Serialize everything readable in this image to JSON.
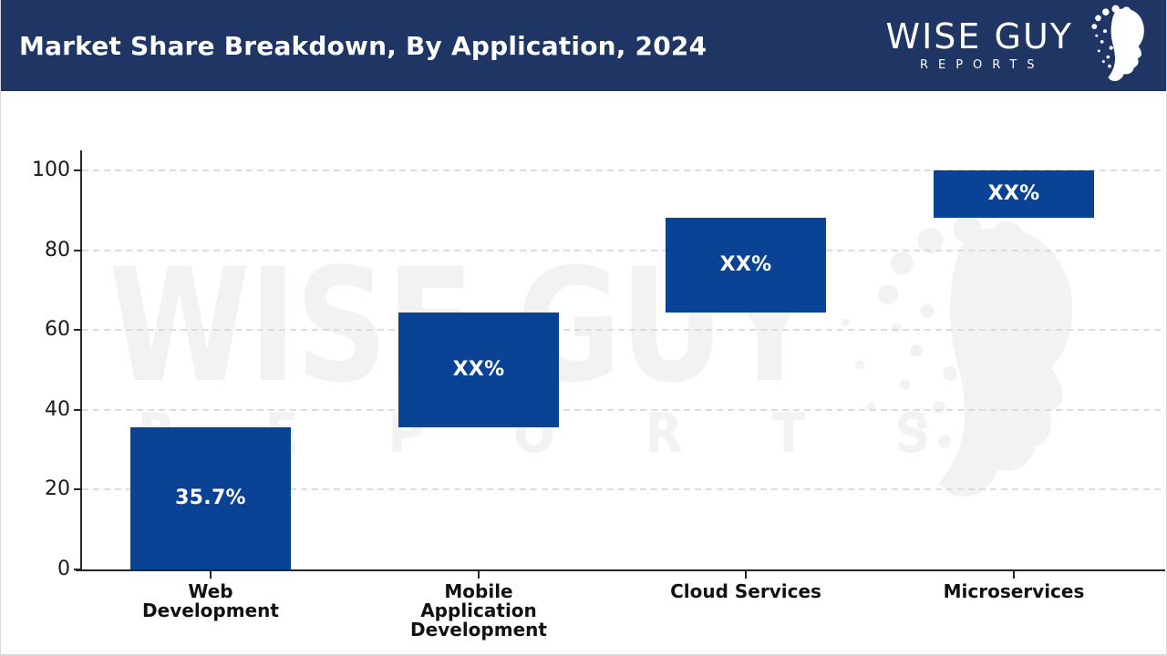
{
  "page": {
    "background": "#ffffff",
    "border_color": "#d9d9d9"
  },
  "header": {
    "background": "#1f3563",
    "title": "Market Share Breakdown, By Application, 2024",
    "title_color": "#ffffff",
    "logo": {
      "line1": "WISE GUY",
      "line2": "REPORTS",
      "color": "#ffffff"
    }
  },
  "watermark": {
    "line1": "WISE GUY",
    "line2": "R E P O R T S",
    "color": "#f2f2f2"
  },
  "chart_data": {
    "type": "bar",
    "subtype": "waterfall",
    "title": "Market Share Breakdown, By Application, 2024",
    "categories": [
      "Web Development",
      "Mobile Application Development",
      "Cloud Services",
      "Microservices"
    ],
    "segments": [
      {
        "category": "Web Development",
        "start": 0,
        "end": 35.7,
        "value": 35.7,
        "label": "35.7%"
      },
      {
        "category": "Mobile Application Development",
        "start": 35.7,
        "end": 64.4,
        "value": 28.7,
        "label": "XX%"
      },
      {
        "category": "Cloud Services",
        "start": 64.4,
        "end": 88.2,
        "value": 23.8,
        "label": "XX%"
      },
      {
        "category": "Microservices",
        "start": 88.2,
        "end": 100,
        "value": 11.8,
        "label": "XX%"
      }
    ],
    "yticks": [
      0,
      20,
      40,
      60,
      80,
      100
    ],
    "ylim": [
      0,
      105
    ],
    "xlabel": "",
    "ylabel": "",
    "grid": "horizontal-dashed",
    "legend": "none",
    "bar_color": "#0a4396",
    "bar_label_color": "#ffffff",
    "grid_color": "#dcdcdc",
    "axis_color": "#262626",
    "tick_label_color": "#1a1a1a"
  }
}
